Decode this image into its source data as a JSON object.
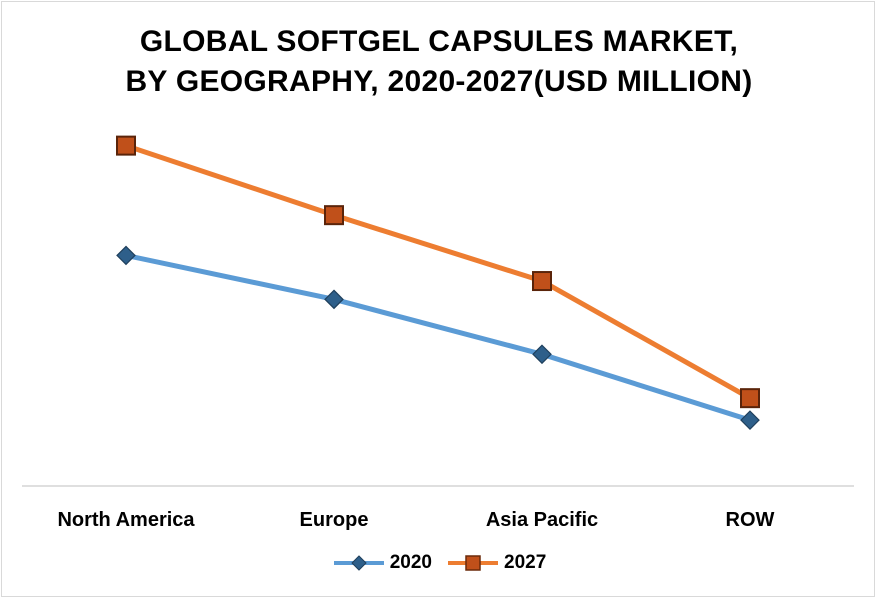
{
  "chart_data": {
    "type": "line",
    "title_lines": [
      "GLOBAL SOFTGEL CAPSULES MARKET,",
      "BY GEOGRAPHY, 2020-2027(USD MILLION)"
    ],
    "categories": [
      "North America",
      "Europe",
      "Asia Pacific",
      "ROW"
    ],
    "ylim": [
      0,
      100
    ],
    "series": [
      {
        "name": "2020",
        "values": [
          63,
          51,
          36,
          18
        ],
        "color": "#5b9bd5",
        "marker": "diamond",
        "marker_color": "#2e5f8a"
      },
      {
        "name": "2027",
        "values": [
          93,
          74,
          56,
          24
        ],
        "color": "#ed7d31",
        "marker": "square",
        "marker_color": "#c0501a"
      }
    ],
    "grid": false,
    "legend_position": "bottom"
  }
}
